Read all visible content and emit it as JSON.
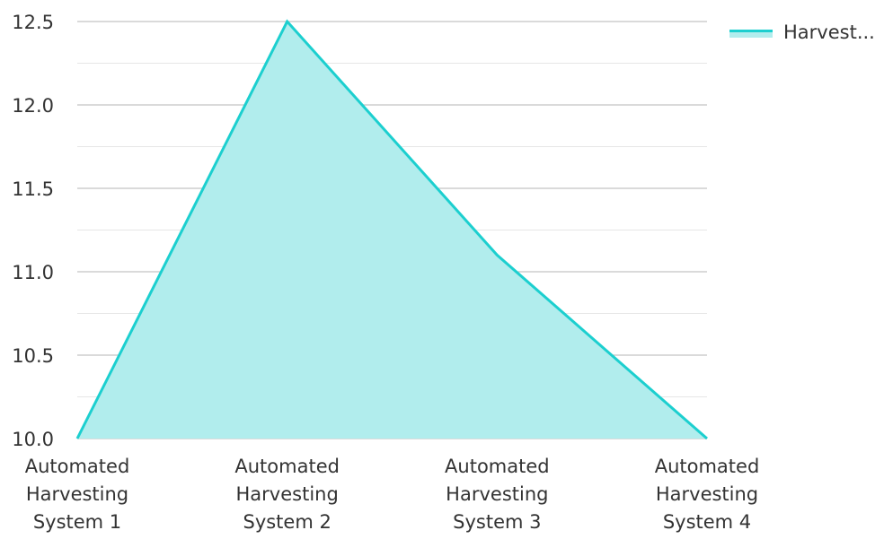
{
  "chart_data": {
    "type": "area",
    "categories": [
      [
        "Automated",
        "Harvesting",
        "System 1"
      ],
      [
        "Automated",
        "Harvesting",
        "System 2"
      ],
      [
        "Automated",
        "Harvesting",
        "System 3"
      ],
      [
        "Automated",
        "Harvesting",
        "System 4"
      ]
    ],
    "series": [
      {
        "name": "Harvest...",
        "values": [
          10.0,
          12.5,
          11.1,
          10.0
        ]
      }
    ],
    "title": "",
    "xlabel": "",
    "ylabel": "",
    "ylim": [
      10.0,
      12.5
    ],
    "yticks": [
      "10.0",
      "10.5",
      "11.0",
      "11.5",
      "12.0",
      "12.5"
    ],
    "grid": true,
    "legend_position": "top-right",
    "colors": {
      "line": "#1ccfcf",
      "fill": "#b1eded",
      "grid_major": "#c4c4c4",
      "grid_minor": "#e6e6e6"
    }
  }
}
